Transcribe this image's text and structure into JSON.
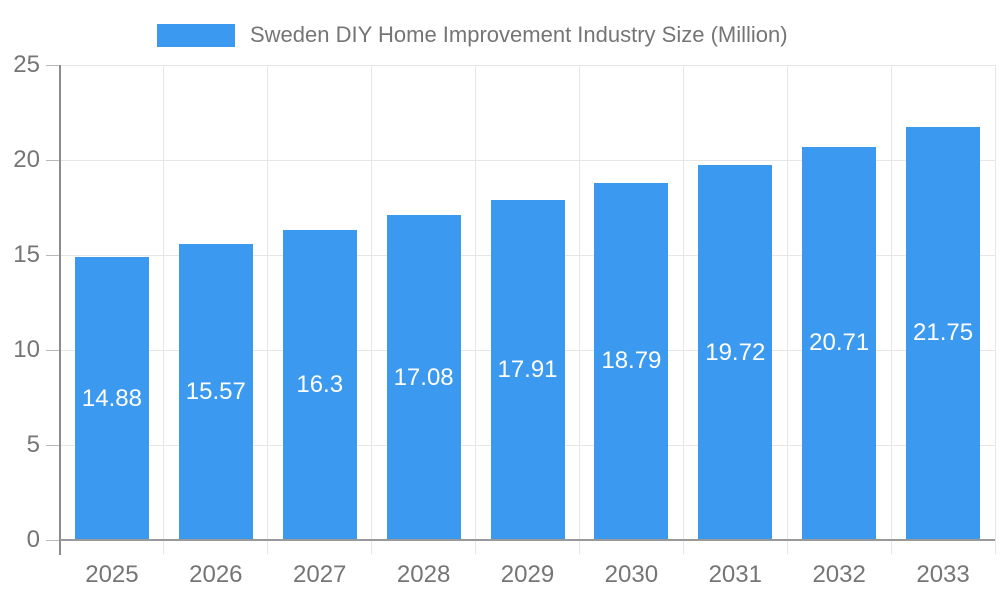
{
  "chart_data": {
    "type": "bar",
    "title": "Sweden DIY Home Improvement Industry Size (Million)",
    "legend": {
      "position": "top",
      "entries": [
        "Sweden DIY Home Improvement Industry Size (Million)"
      ]
    },
    "categories": [
      "2025",
      "2026",
      "2027",
      "2028",
      "2029",
      "2030",
      "2031",
      "2032",
      "2033"
    ],
    "values": [
      14.88,
      15.57,
      16.3,
      17.08,
      17.91,
      18.79,
      19.72,
      20.71,
      21.75
    ],
    "value_labels": [
      "14.88",
      "15.57",
      "16.3",
      "17.08",
      "17.91",
      "18.79",
      "19.72",
      "20.71",
      "21.75"
    ],
    "xlabel": "",
    "ylabel": "",
    "ylim": [
      0,
      25
    ],
    "yticks": [
      0,
      5,
      10,
      15,
      20,
      25
    ],
    "grid": true,
    "colors": {
      "bar": "#3b99f0",
      "value_label": "#ffffff",
      "axis_text": "#757575",
      "gridline": "#e6e6e6",
      "axis_line": "#8c8c8c",
      "background": "#ffffff"
    }
  }
}
